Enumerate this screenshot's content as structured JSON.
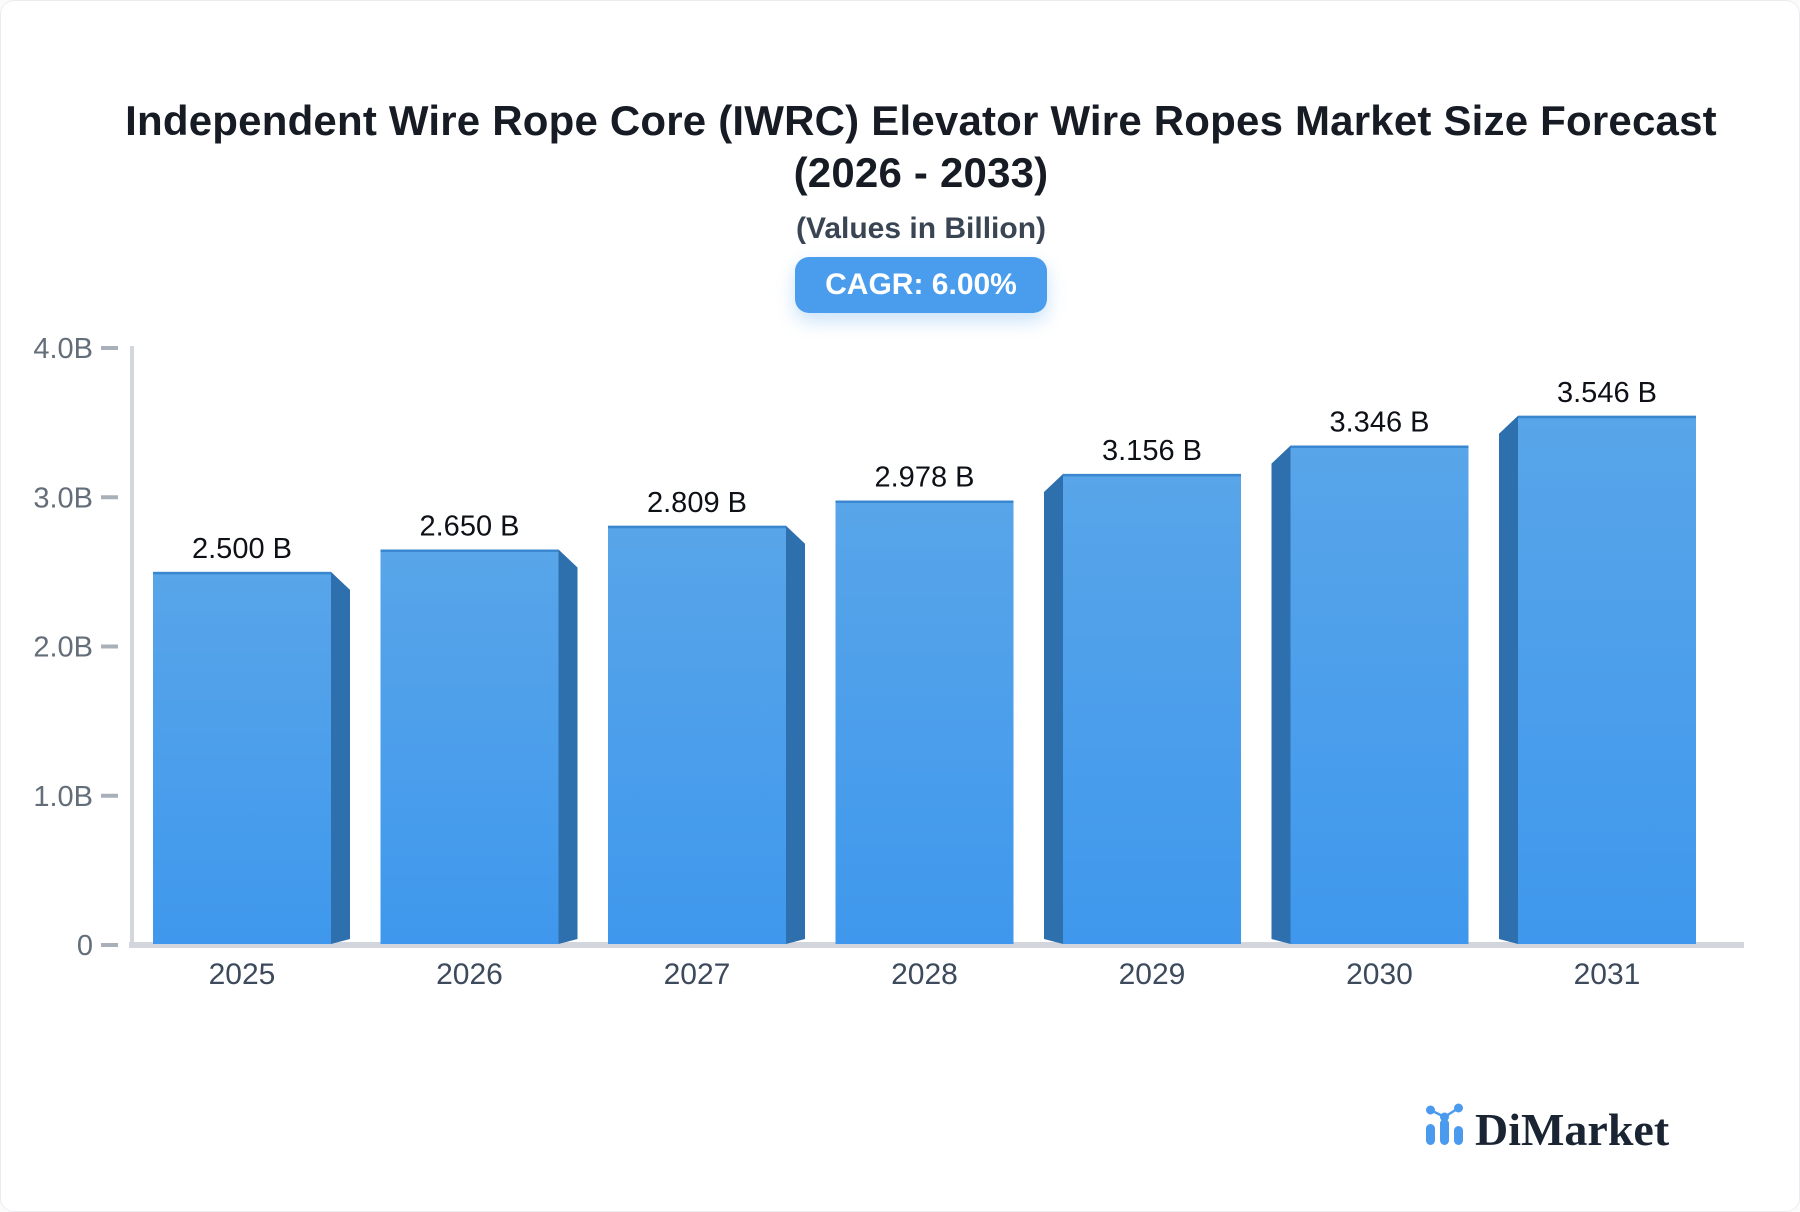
{
  "header": {
    "title_line1": "Independent Wire Rope Core (IWRC) Elevator Wire Ropes Market Size Forecast",
    "title_line2": "(2026 - 2033)",
    "subtitle": "(Values in Billion)",
    "cagr_badge": "CAGR: 6.00%"
  },
  "chart_data": {
    "type": "bar",
    "title": "Independent Wire Rope Core (IWRC) Elevator Wire Ropes Market Size Forecast (2026 - 2033)",
    "subtitle": "(Values in Billion)",
    "annotation": "CAGR: 6.00%",
    "categories": [
      "2025",
      "2026",
      "2027",
      "2028",
      "2029",
      "2030",
      "2031"
    ],
    "values": [
      2.5,
      2.65,
      2.809,
      2.978,
      3.156,
      3.346,
      3.546
    ],
    "value_labels": [
      "2.500 B",
      "2.650 B",
      "2.809 B",
      "2.978 B",
      "3.156 B",
      "3.346 B",
      "3.546 B"
    ],
    "unit": "Billion",
    "xlabel": "",
    "ylabel": "",
    "ylim": [
      0,
      4
    ],
    "yticks": [
      {
        "value": 4,
        "label": "4.0B"
      },
      {
        "value": 3,
        "label": "3.0B"
      },
      {
        "value": 2,
        "label": "2.0B"
      },
      {
        "value": 1,
        "label": "1.0B"
      },
      {
        "value": 0,
        "label": "0"
      }
    ],
    "grid": false,
    "legend": null,
    "bar_style": "3d-bevel-toward-center"
  },
  "footer": {
    "logo_text": "DiMarket"
  },
  "colors": {
    "badge_bg": "#4a9ded",
    "badge_text": "#ffffff",
    "bar_face_top": "#58a5e9",
    "bar_face_bottom": "#3f98ed",
    "bar_side": "#2e6fad",
    "bar_top_edge": "#3a86cf",
    "axis_line": "#d3d7dd",
    "tick_dash": "#a9b0b9",
    "y_label": "#636e7a",
    "x_label": "#3d4a5c",
    "value_label": "#0d1016",
    "title": "#161b24",
    "subtitle": "#3a4554",
    "logo_blue": "#4a9bee",
    "logo_text": "#1a2433"
  }
}
